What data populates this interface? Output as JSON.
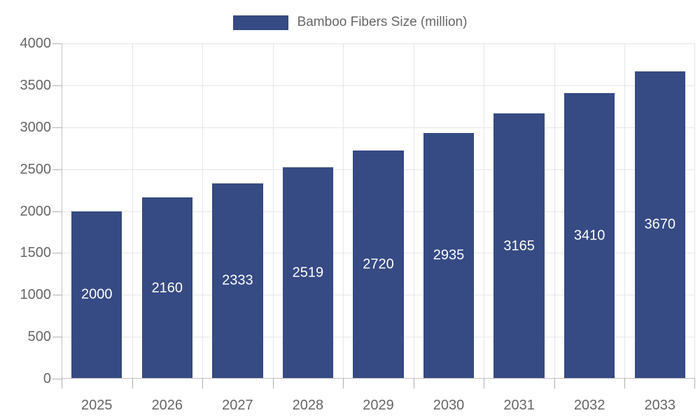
{
  "legend": {
    "label": "Bamboo Fibers Size (million)"
  },
  "chart_data": {
    "type": "bar",
    "title": "Bamboo Fibers Size (million)",
    "categories": [
      "2025",
      "2026",
      "2027",
      "2028",
      "2029",
      "2030",
      "2031",
      "2032",
      "2033"
    ],
    "values": [
      2000,
      2160,
      2333,
      2519,
      2720,
      2935,
      3165,
      3410,
      3670
    ],
    "series": [
      {
        "name": "Bamboo Fibers Size (million)",
        "values": [
          2000,
          2160,
          2333,
          2519,
          2720,
          2935,
          3165,
          3410,
          3670
        ]
      }
    ],
    "xlabel": "",
    "ylabel": "",
    "ylim": [
      0,
      4000
    ],
    "yticks": [
      0,
      500,
      1000,
      1500,
      2000,
      2500,
      3000,
      3500,
      4000
    ],
    "grid": true,
    "legend_position": "top",
    "colors": {
      "bar": "#364a84",
      "value_label": "#ffffff",
      "axis_text": "#666666",
      "gridline": "#e6e6e6",
      "axis_line": "#c0c0c0",
      "tick": "#b0b0b0",
      "background": "#ffffff"
    }
  }
}
